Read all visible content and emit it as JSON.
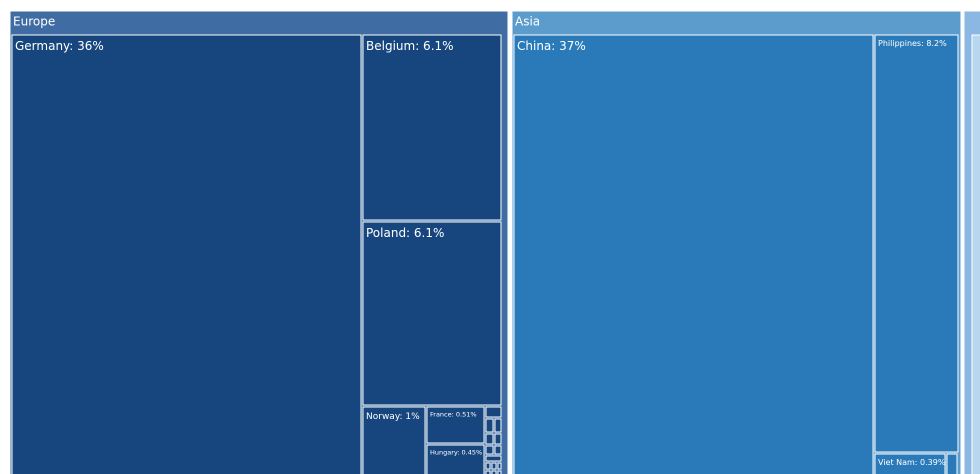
{
  "chart_data": {
    "type": "treemap",
    "colors": {
      "Europe_header": "#3f6ca3",
      "Europe_tile": "#17467f",
      "Asia_header": "#5b9ccc",
      "Asia_tile": "#2a7aba",
      "third_header": "#8ab8e2",
      "third_tile": "#b9d6ef",
      "border": "#ffffff"
    },
    "groups": [
      {
        "name": "Europe",
        "items": [
          {
            "label": "Germany: 36%"
          },
          {
            "label": "Belgium: 6.1%"
          },
          {
            "label": "Poland: 6.1%"
          },
          {
            "label": "Norway: 1%"
          },
          {
            "label": "France: 0.51%"
          },
          {
            "label": "Hungary: 0.45%"
          },
          {
            "label": ""
          },
          {
            "label": ""
          },
          {
            "label": ""
          },
          {
            "label": ""
          },
          {
            "label": ""
          },
          {
            "label": ""
          },
          {
            "label": ""
          },
          {
            "label": ""
          },
          {
            "label": ""
          },
          {
            "label": ""
          },
          {
            "label": ""
          },
          {
            "label": ""
          },
          {
            "label": ""
          },
          {
            "label": ""
          }
        ]
      },
      {
        "name": "Asia",
        "items": [
          {
            "label": "China: 37%"
          },
          {
            "label": "Philippines: 8.2%"
          },
          {
            "label": "Viet Nam: 0.39%"
          },
          {
            "label": ""
          }
        ]
      },
      {
        "name": "",
        "items": [
          {
            "label": ""
          }
        ]
      }
    ]
  }
}
